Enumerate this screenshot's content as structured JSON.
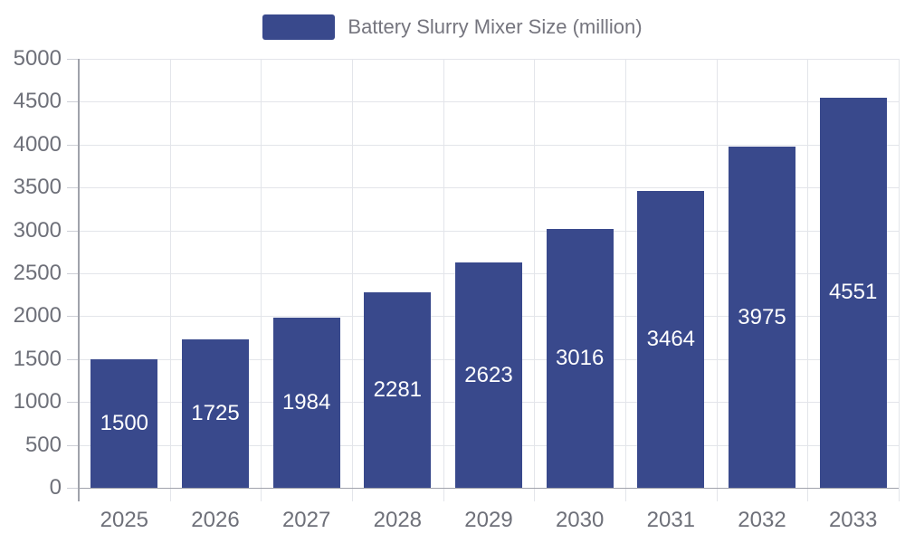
{
  "colors": {
    "bar": "#39498C",
    "axis_line": "#A0A2AB",
    "grid_line": "#E3E5EA",
    "tick_line": "#CDCFD6",
    "axis_label": "#6E7079",
    "legend_text": "#75757E",
    "value_label": "#FFFFFF",
    "background": "#FFFFFF"
  },
  "legend": {
    "label": "Battery Slurry Mixer Size (million)",
    "swatch_color": "#39498C"
  },
  "chart_data": {
    "type": "bar",
    "title": "Battery Slurry Mixer Size (million)",
    "categories": [
      "2025",
      "2026",
      "2027",
      "2028",
      "2029",
      "2030",
      "2031",
      "2032",
      "2033"
    ],
    "series": [
      {
        "name": "Battery Slurry Mixer Size (million)",
        "values": [
          1500,
          1725,
          1984,
          2281,
          2623,
          3016,
          3464,
          3975,
          4551
        ]
      }
    ],
    "xlabel": "",
    "ylabel": "",
    "ylim": [
      0,
      5000
    ],
    "ytick_step": 500,
    "yticks": [
      0,
      500,
      1000,
      1500,
      2000,
      2500,
      3000,
      3500,
      4000,
      4500,
      5000
    ],
    "grid": true,
    "legend_position": "top-center",
    "value_labels_position": "inside-center",
    "value_labels_color": "#FFFFFF"
  }
}
